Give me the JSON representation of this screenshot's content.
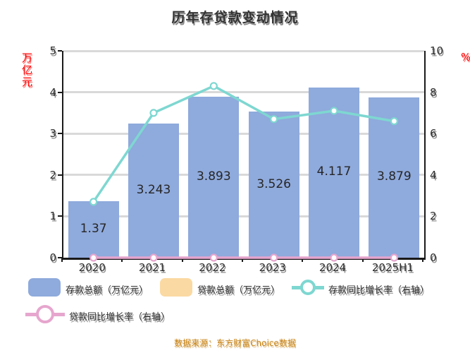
{
  "title": "历年存贷款变动情况",
  "footer": "数据来源：东方财富Choice数据",
  "colors": {
    "bar_primary": "#8FAADC",
    "bar_secondary": "#FBD9A2",
    "line_teal": "#7ED7D1",
    "line_pink": "#E6A6CE",
    "gridline": "#D9D9D9",
    "axis_unit": "#FF0000",
    "footer_text": "#C9861B"
  },
  "chart_data": {
    "type": "bar+line combo",
    "title": "历年存贷款变动情况",
    "categories": [
      "2020",
      "2021",
      "2022",
      "2023",
      "2024",
      "2025H1"
    ],
    "series": [
      {
        "name": "存款总额（万亿元）",
        "type": "bar",
        "axis": "left",
        "color": "#8FAADC",
        "values": [
          1.37,
          3.243,
          3.893,
          3.526,
          4.117,
          3.879
        ],
        "labels": [
          "1.37",
          "3.243",
          "3.893",
          "3.526",
          "4.117",
          "3.879"
        ]
      },
      {
        "name": "贷款总额（万亿元）",
        "type": "bar",
        "axis": "left",
        "color": "#FBD9A2",
        "values": [
          0,
          0,
          0,
          0,
          0,
          0
        ],
        "labels": [
          "",
          "",
          "",
          "",
          "",
          ""
        ]
      },
      {
        "name": "存款同比增长率（右轴）",
        "type": "line",
        "axis": "right",
        "color": "#7ED7D1",
        "values": [
          2.7,
          7.0,
          8.3,
          6.7,
          7.1,
          6.6
        ]
      },
      {
        "name": "贷款同比增长率（右轴）",
        "type": "line",
        "axis": "right",
        "color": "#E6A6CE",
        "values": [
          0,
          0,
          0,
          0,
          0,
          0
        ]
      }
    ],
    "left_axis": {
      "min": 0,
      "max": 5,
      "ticks": [
        0,
        1,
        2,
        3,
        4,
        5
      ],
      "unit": "万亿元"
    },
    "right_axis": {
      "min": 0,
      "max": 10,
      "ticks": [
        0,
        2,
        4,
        6,
        8,
        10
      ],
      "unit": "%"
    },
    "grid": true,
    "legend_position": "bottom"
  },
  "legend": {
    "items": [
      {
        "label": "存款总额（万亿元）",
        "marker": "bar-swatch",
        "color": "#8FAADC"
      },
      {
        "label": "贷款总额（万亿元）",
        "marker": "bar-swatch",
        "color": "#FBD9A2"
      },
      {
        "label": "存款同比增长率（右轴）",
        "marker": "line-circle",
        "color": "#7ED7D1"
      },
      {
        "label": "贷款同比增长率（右轴）",
        "marker": "line-circle",
        "color": "#E6A6CE"
      }
    ]
  }
}
